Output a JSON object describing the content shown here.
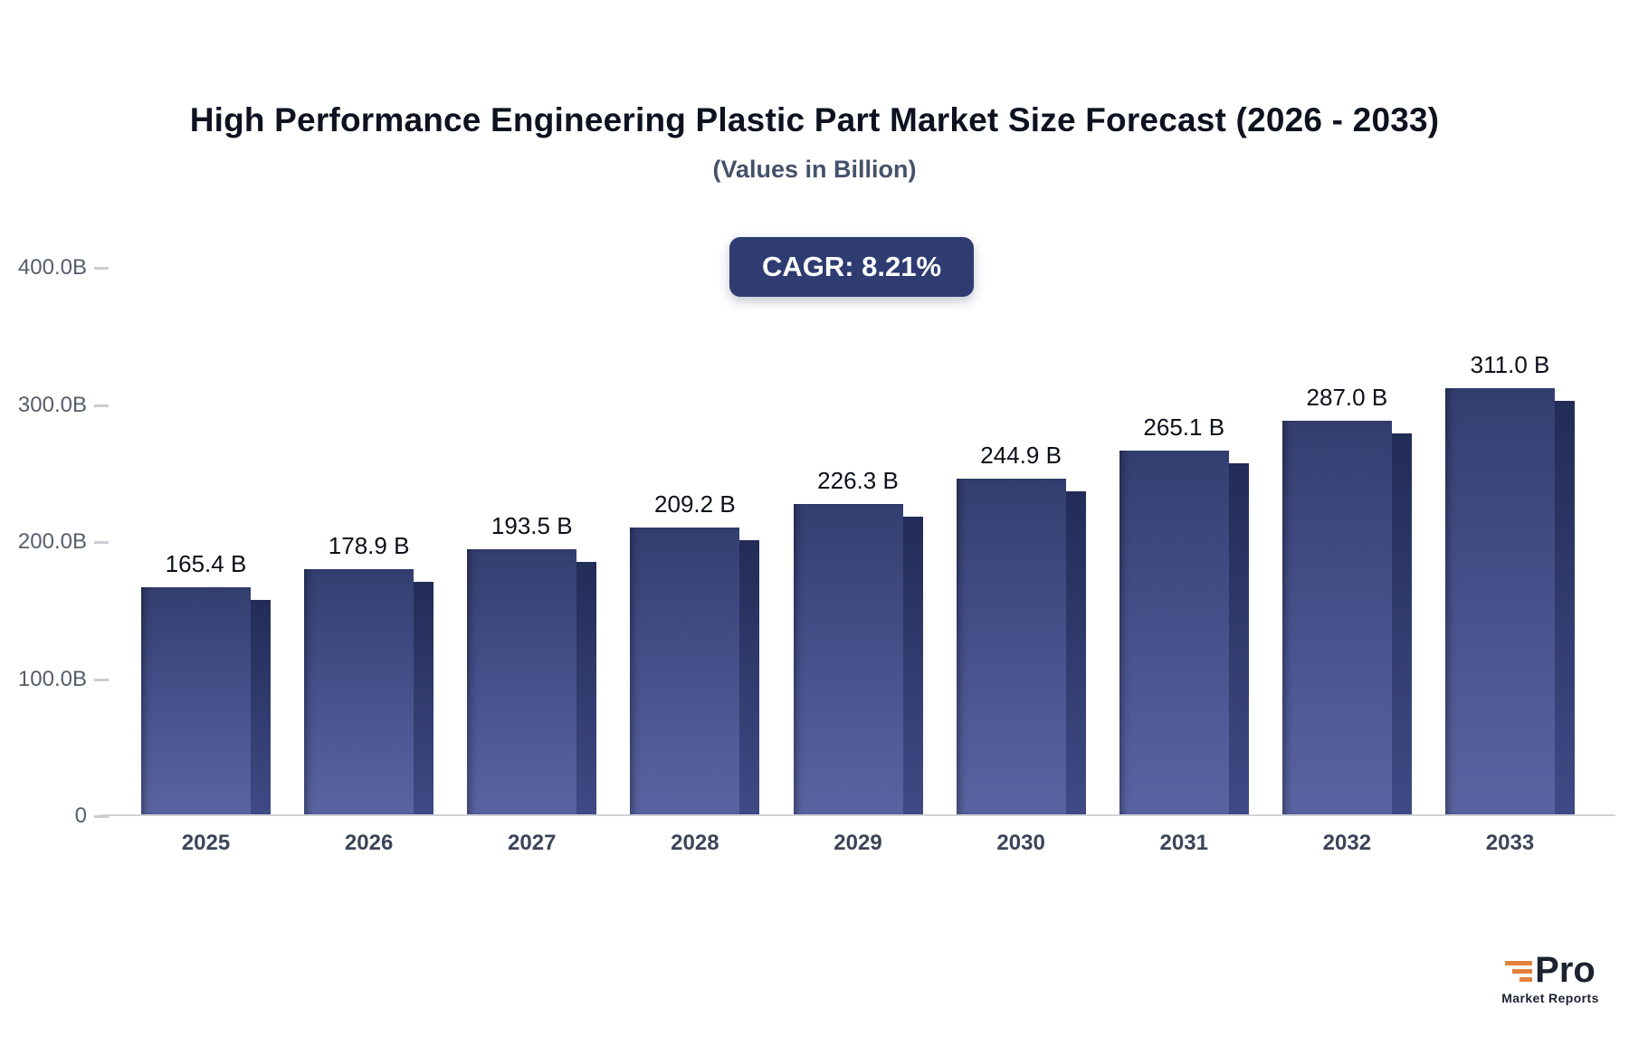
{
  "header": {
    "title": "High Performance Engineering Plastic Part Market Size Forecast (2026 - 2033)",
    "subtitle": "(Values in Billion)"
  },
  "badge": {
    "label": "CAGR: 8.21%"
  },
  "logo": {
    "name": "Pro",
    "tagline": "Market Reports"
  },
  "colors": {
    "badge_bg": "#2e3c72",
    "bar_gradient_top": "#333e70",
    "bar_gradient_bottom": "#5a64a2",
    "bar_side": "#222c57",
    "accent_orange": "#e2833b",
    "axis_line": "#cfd2d6"
  },
  "chart_data": {
    "type": "bar",
    "title": "High Performance Engineering Plastic Part Market Size Forecast (2026 - 2033)",
    "subtitle": "(Values in Billion)",
    "cagr": "CAGR: 8.21%",
    "categories": [
      "2025",
      "2026",
      "2027",
      "2028",
      "2029",
      "2030",
      "2031",
      "2032",
      "2033"
    ],
    "values": [
      165.4,
      178.9,
      193.5,
      209.2,
      226.3,
      244.9,
      265.1,
      287.0,
      311.0
    ],
    "value_labels": [
      "165.4 B",
      "178.9 B",
      "193.5 B",
      "209.2 B",
      "226.3 B",
      "244.9 B",
      "265.1 B",
      "287.0 B",
      "311.0 B"
    ],
    "xlabel": "",
    "ylabel": "",
    "ylim": [
      0,
      400
    ],
    "yticks": [
      {
        "value": 400,
        "label": "400.0B"
      },
      {
        "value": 300,
        "label": "300.0B"
      },
      {
        "value": 200,
        "label": "200.0B"
      },
      {
        "value": 100,
        "label": "100.0B"
      },
      {
        "value": 0,
        "label": "0"
      }
    ],
    "grid": false,
    "legend": false
  }
}
